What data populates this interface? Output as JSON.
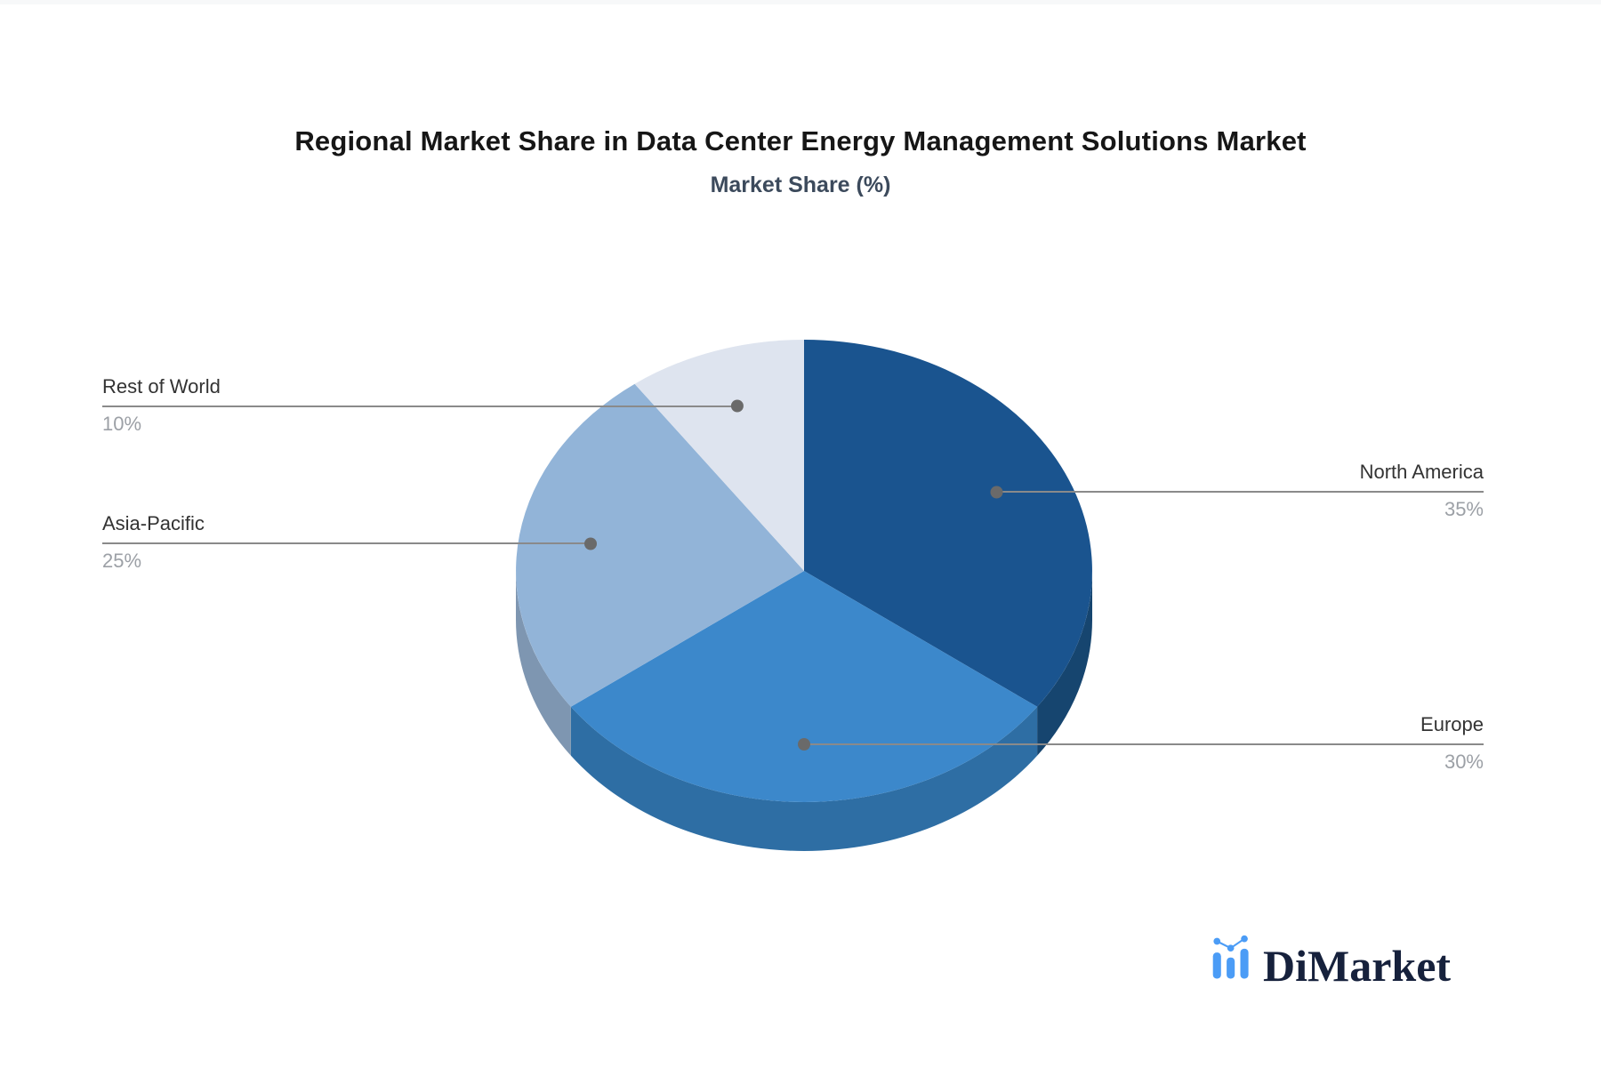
{
  "chart_data": {
    "type": "pie",
    "title": "Regional Market Share in Data Center Energy Management Solutions Market",
    "subtitle": "Market Share (%)",
    "unit": "%",
    "direction": "clockwise",
    "start_angle_deg": 0,
    "effect": "3d-depth",
    "legend_position": "none",
    "labels_layout": "callout-leader-lines",
    "leader_line_color": "#8a8a8a",
    "leader_dot_color": "#6a6a6a",
    "label_text_color": "#333333",
    "value_text_color": "#9ca0a6",
    "slices": [
      {
        "label": "North America",
        "value": 35,
        "display": "35%",
        "color": "#1a548f",
        "side_color": "#16456f",
        "label_side": "right"
      },
      {
        "label": "Europe",
        "value": 30,
        "display": "30%",
        "color": "#3c88cb",
        "side_color": "#2e6ea4",
        "label_side": "right"
      },
      {
        "label": "Asia-Pacific",
        "value": 25,
        "display": "25%",
        "color": "#92b4d8",
        "side_color": "#7e96b1",
        "label_side": "left"
      },
      {
        "label": "Rest of World",
        "value": 10,
        "display": "10%",
        "color": "#dee4ef",
        "side_color": "#c3ccda",
        "label_side": "left"
      }
    ]
  },
  "branding": {
    "logo_text": "DiMarket",
    "logo_icon": "bar-line-chart-icon",
    "logo_icon_color": "#4b9cf6",
    "logo_text_color": "#16213c"
  }
}
